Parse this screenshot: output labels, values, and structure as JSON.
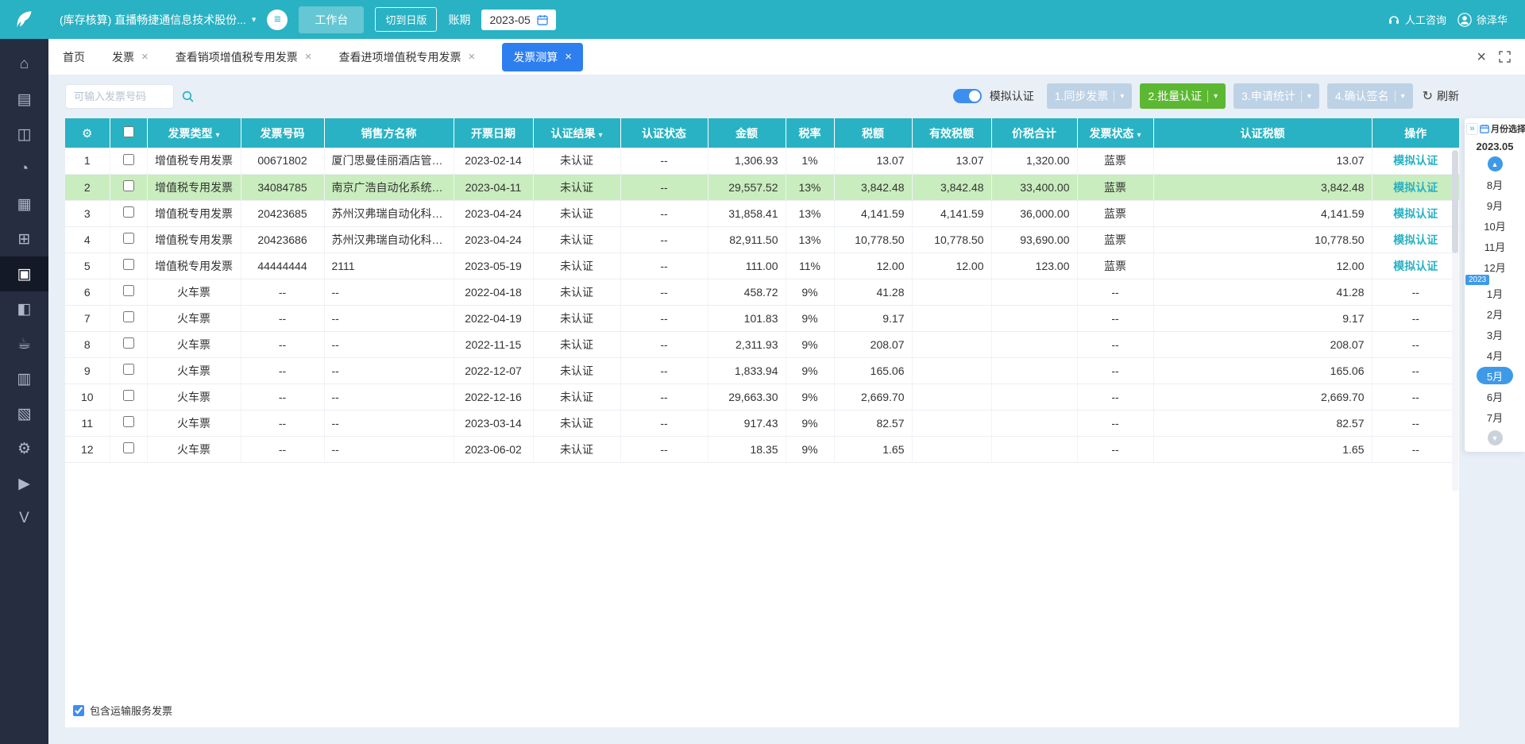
{
  "icons": {
    "collapse": "»",
    "scroll_up": "▲",
    "scroll_down": "▼",
    "chevron_down": "▾",
    "refresh": "↻",
    "close": "×",
    "wheel": "⚙",
    "notice": "≡"
  },
  "header": {
    "company": "(库存核算) 直播畅捷通信息技术股份...",
    "workbench_button": "工作台",
    "switch_button": "切到日版",
    "period_label": "账期",
    "period_value": "2023-05",
    "consult_label": "人工咨询",
    "user_name": "徐泽华"
  },
  "sidebar": {
    "items": [
      {
        "name": "home",
        "glyph": "⌂"
      },
      {
        "name": "voucher",
        "glyph": "▤"
      },
      {
        "name": "report",
        "glyph": "◫"
      },
      {
        "name": "gauge",
        "glyph": "◔"
      },
      {
        "name": "bank",
        "glyph": "▦"
      },
      {
        "name": "modules",
        "glyph": "⊞"
      },
      {
        "name": "inventory",
        "glyph": "▣",
        "active": true
      },
      {
        "name": "company",
        "glyph": "◧"
      },
      {
        "name": "service",
        "glyph": "☕"
      },
      {
        "name": "checklist",
        "glyph": "▥"
      },
      {
        "name": "assets",
        "glyph": "▧"
      },
      {
        "name": "settings",
        "glyph": "⚙"
      },
      {
        "name": "video",
        "glyph": "▶"
      },
      {
        "name": "brand",
        "glyph": "V"
      }
    ]
  },
  "tabs": [
    {
      "name": "home",
      "label": "首页",
      "closable": false,
      "active": false
    },
    {
      "name": "invoice",
      "label": "发票",
      "closable": true,
      "active": false
    },
    {
      "name": "view-output-vat",
      "label": "查看销项增值税专用发票",
      "closable": true,
      "active": false
    },
    {
      "name": "view-input-vat",
      "label": "查看进项增值税专用发票",
      "closable": true,
      "active": false
    },
    {
      "name": "invoice-calc",
      "label": "发票测算",
      "closable": true,
      "active": true
    }
  ],
  "toolbar": {
    "search_placeholder": "可输入发票号码",
    "toggle_label": "模拟认证",
    "toggle_on": true,
    "buttons": [
      {
        "name": "sync-invoice",
        "label": "1.同步发票",
        "style": "muted"
      },
      {
        "name": "batch-auth",
        "label": "2.批量认证",
        "style": "green"
      },
      {
        "name": "apply-statistics",
        "label": "3.申请统计",
        "style": "muted"
      },
      {
        "name": "confirm-sign",
        "label": "4.确认签名",
        "style": "muted"
      }
    ],
    "refresh_label": "刷新"
  },
  "table": {
    "columns": [
      {
        "key": "rowicon",
        "label": ""
      },
      {
        "key": "check",
        "label": ""
      },
      {
        "key": "type",
        "label": "发票类型",
        "sort": true
      },
      {
        "key": "no",
        "label": "发票号码"
      },
      {
        "key": "seller",
        "label": "销售方名称"
      },
      {
        "key": "date",
        "label": "开票日期"
      },
      {
        "key": "result",
        "label": "认证结果",
        "sort": true
      },
      {
        "key": "status",
        "label": "认证状态"
      },
      {
        "key": "amount",
        "label": "金额"
      },
      {
        "key": "rate",
        "label": "税率"
      },
      {
        "key": "tax",
        "label": "税额"
      },
      {
        "key": "valid_tax",
        "label": "有效税额"
      },
      {
        "key": "total",
        "label": "价税合计"
      },
      {
        "key": "inv_status",
        "label": "发票状态",
        "sort": true
      },
      {
        "key": "auth_tax",
        "label": "认证税额"
      },
      {
        "key": "op",
        "label": "操作"
      }
    ],
    "rows": [
      {
        "num": "1",
        "type": "增值税专用发票",
        "no": "00671802",
        "seller": "厦门思曼佳丽酒店管理有限...",
        "date": "2023-02-14",
        "result": "未认证",
        "status": "--",
        "amount": "1,306.93",
        "rate": "1%",
        "tax": "13.07",
        "valid_tax": "13.07",
        "total": "1,320.00",
        "inv_status": "蓝票",
        "auth_tax": "13.07",
        "op": "模拟认证",
        "highlight": false
      },
      {
        "num": "2",
        "type": "增值税专用发票",
        "no": "34084785",
        "seller": "南京广浩自动化系统有限责...",
        "date": "2023-04-11",
        "result": "未认证",
        "status": "--",
        "amount": "29,557.52",
        "rate": "13%",
        "tax": "3,842.48",
        "valid_tax": "3,842.48",
        "total": "33,400.00",
        "inv_status": "蓝票",
        "auth_tax": "3,842.48",
        "op": "模拟认证",
        "highlight": true
      },
      {
        "num": "3",
        "type": "增值税专用发票",
        "no": "20423685",
        "seller": "苏州汉弗瑞自动化科技有限...",
        "date": "2023-04-24",
        "result": "未认证",
        "status": "--",
        "amount": "31,858.41",
        "rate": "13%",
        "tax": "4,141.59",
        "valid_tax": "4,141.59",
        "total": "36,000.00",
        "inv_status": "蓝票",
        "auth_tax": "4,141.59",
        "op": "模拟认证",
        "highlight": false
      },
      {
        "num": "4",
        "type": "增值税专用发票",
        "no": "20423686",
        "seller": "苏州汉弗瑞自动化科技有限...",
        "date": "2023-04-24",
        "result": "未认证",
        "status": "--",
        "amount": "82,911.50",
        "rate": "13%",
        "tax": "10,778.50",
        "valid_tax": "10,778.50",
        "total": "93,690.00",
        "inv_status": "蓝票",
        "auth_tax": "10,778.50",
        "op": "模拟认证",
        "highlight": false
      },
      {
        "num": "5",
        "type": "增值税专用发票",
        "no": "44444444",
        "seller": "2111",
        "date": "2023-05-19",
        "result": "未认证",
        "status": "--",
        "amount": "111.00",
        "rate": "11%",
        "tax": "12.00",
        "valid_tax": "12.00",
        "total": "123.00",
        "inv_status": "蓝票",
        "auth_tax": "12.00",
        "op": "模拟认证",
        "highlight": false
      },
      {
        "num": "6",
        "type": "火车票",
        "no": "--",
        "seller": "--",
        "date": "2022-04-18",
        "result": "未认证",
        "status": "--",
        "amount": "458.72",
        "rate": "9%",
        "tax": "41.28",
        "valid_tax": "",
        "total": "",
        "inv_status": "--",
        "auth_tax": "41.28",
        "op": "--",
        "highlight": false
      },
      {
        "num": "7",
        "type": "火车票",
        "no": "--",
        "seller": "--",
        "date": "2022-04-19",
        "result": "未认证",
        "status": "--",
        "amount": "101.83",
        "rate": "9%",
        "tax": "9.17",
        "valid_tax": "",
        "total": "",
        "inv_status": "--",
        "auth_tax": "9.17",
        "op": "--",
        "highlight": false
      },
      {
        "num": "8",
        "type": "火车票",
        "no": "--",
        "seller": "--",
        "date": "2022-11-15",
        "result": "未认证",
        "status": "--",
        "amount": "2,311.93",
        "rate": "9%",
        "tax": "208.07",
        "valid_tax": "",
        "total": "",
        "inv_status": "--",
        "auth_tax": "208.07",
        "op": "--",
        "highlight": false
      },
      {
        "num": "9",
        "type": "火车票",
        "no": "--",
        "seller": "--",
        "date": "2022-12-07",
        "result": "未认证",
        "status": "--",
        "amount": "1,833.94",
        "rate": "9%",
        "tax": "165.06",
        "valid_tax": "",
        "total": "",
        "inv_status": "--",
        "auth_tax": "165.06",
        "op": "--",
        "highlight": false
      },
      {
        "num": "10",
        "type": "火车票",
        "no": "--",
        "seller": "--",
        "date": "2022-12-16",
        "result": "未认证",
        "status": "--",
        "amount": "29,663.30",
        "rate": "9%",
        "tax": "2,669.70",
        "valid_tax": "",
        "total": "",
        "inv_status": "--",
        "auth_tax": "2,669.70",
        "op": "--",
        "highlight": false
      },
      {
        "num": "11",
        "type": "火车票",
        "no": "--",
        "seller": "--",
        "date": "2023-03-14",
        "result": "未认证",
        "status": "--",
        "amount": "917.43",
        "rate": "9%",
        "tax": "82.57",
        "valid_tax": "",
        "total": "",
        "inv_status": "--",
        "auth_tax": "82.57",
        "op": "--",
        "highlight": false
      },
      {
        "num": "12",
        "type": "火车票",
        "no": "--",
        "seller": "--",
        "date": "2023-06-02",
        "result": "未认证",
        "status": "--",
        "amount": "18.35",
        "rate": "9%",
        "tax": "1.65",
        "valid_tax": "",
        "total": "",
        "inv_status": "--",
        "auth_tax": "1.65",
        "op": "--",
        "highlight": false
      }
    ]
  },
  "month_panel": {
    "title": "月份选择",
    "current": "2023.05",
    "items": [
      {
        "m": "8月"
      },
      {
        "m": "9月"
      },
      {
        "m": "10月"
      },
      {
        "m": "11月"
      },
      {
        "m": "12月"
      },
      {
        "year": "2023"
      },
      {
        "m": "1月"
      },
      {
        "m": "2月"
      },
      {
        "m": "3月"
      },
      {
        "m": "4月"
      },
      {
        "m": "5月",
        "selected": true
      },
      {
        "m": "6月"
      },
      {
        "m": "7月"
      }
    ]
  },
  "footer": {
    "checkbox_label": "包含运输服务发票"
  }
}
